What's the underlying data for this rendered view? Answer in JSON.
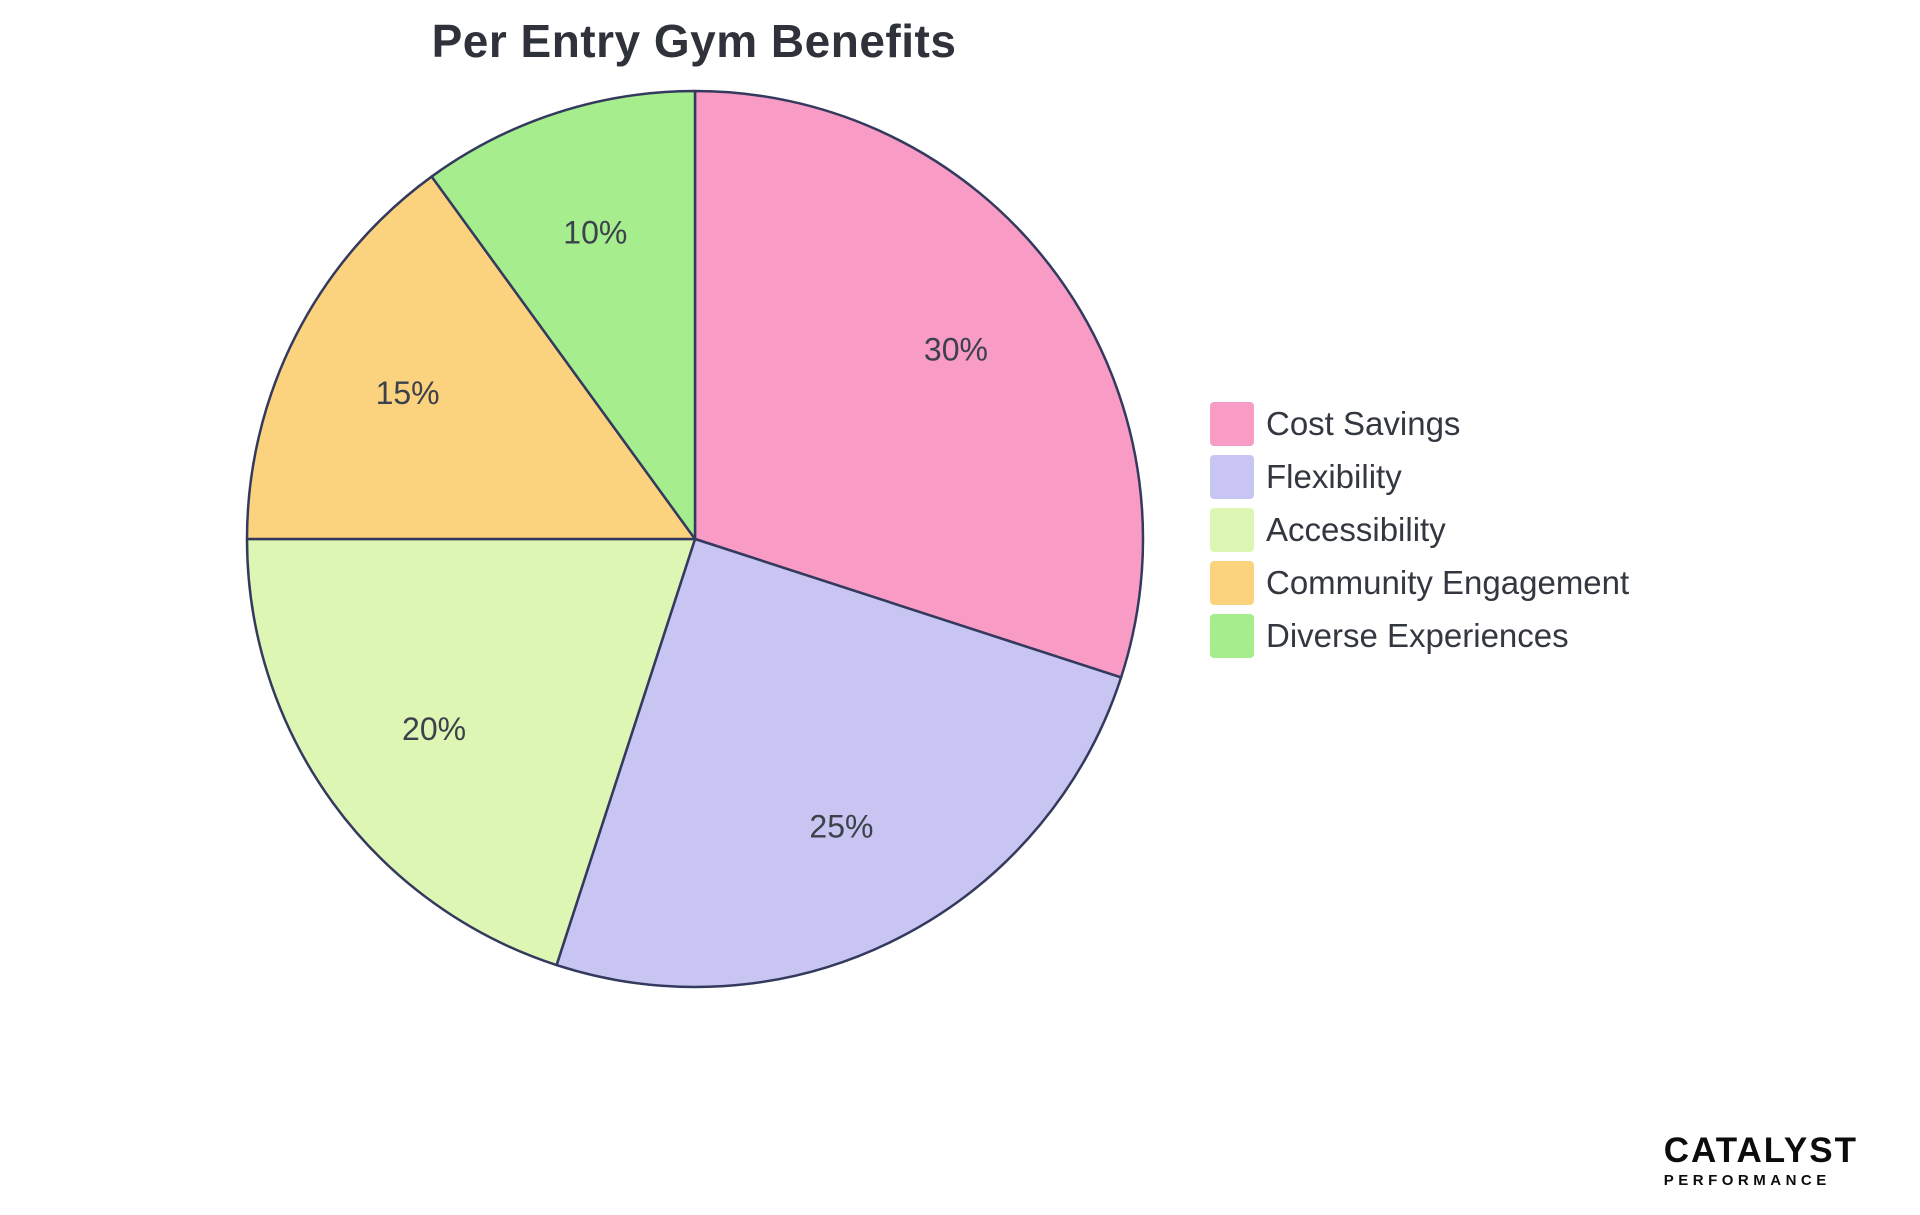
{
  "chart_data": {
    "type": "pie",
    "title": "Per Entry Gym Benefits",
    "labels": [
      "Cost Savings",
      "Flexibility",
      "Accessibility",
      "Community Engagement",
      "Diverse Experiences"
    ],
    "values": [
      30,
      25,
      20,
      15,
      10
    ],
    "value_labels": [
      "30%",
      "25%",
      "20%",
      "15%",
      "10%"
    ],
    "colors": [
      "#F89BC5",
      "#C8C5F2",
      "#DDF6B3",
      "#FBD37F",
      "#A6ED8E"
    ],
    "stroke_color": "#343a5e",
    "label_color": "#3d414b",
    "start_angle_deg": 0,
    "direction": "clockwise",
    "legend_position": "right"
  },
  "brand": {
    "name": "CATALYST",
    "tagline": "PERFORMANCE"
  }
}
